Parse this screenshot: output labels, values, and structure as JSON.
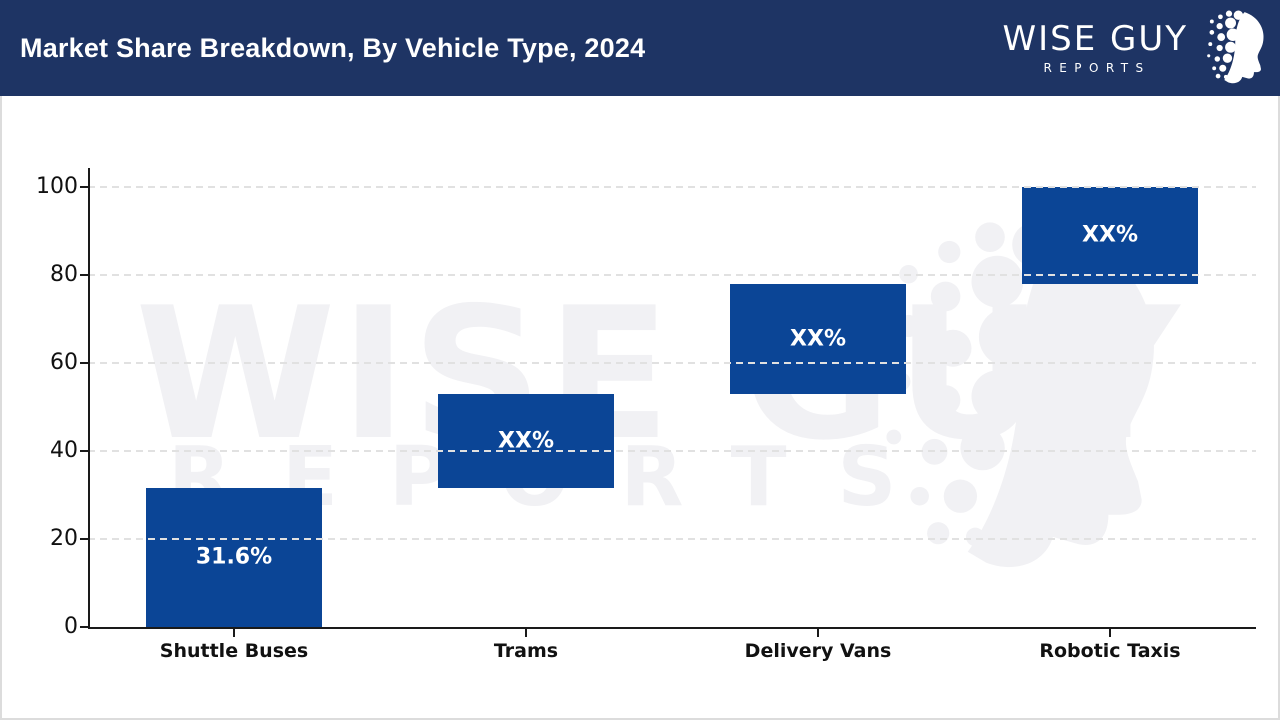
{
  "header": {
    "title": "Market Share Breakdown, By Vehicle Type, 2024",
    "logo": {
      "line1": "WISE GUY",
      "line2": "REPORTS"
    }
  },
  "watermark": {
    "line1": "WISE GUY",
    "line2": "REPORTS"
  },
  "chart_data": {
    "type": "bar",
    "subtype": "waterfall",
    "title": "Market Share Breakdown, By Vehicle Type, 2024",
    "categories": [
      "Shuttle Buses",
      "Trams",
      "Delivery Vans",
      "Robotic Taxis"
    ],
    "segments": [
      {
        "category": "Shuttle Buses",
        "start": 0,
        "end": 31.6,
        "label": "31.6%"
      },
      {
        "category": "Trams",
        "start": 31.6,
        "end": 53,
        "label": "XX%"
      },
      {
        "category": "Delivery Vans",
        "start": 53,
        "end": 78,
        "label": "XX%"
      },
      {
        "category": "Robotic Taxis",
        "start": 78,
        "end": 100,
        "label": "XX%"
      }
    ],
    "yticks": [
      0,
      20,
      40,
      60,
      80,
      100
    ],
    "ylim": [
      0,
      104
    ],
    "xlabel": "",
    "ylabel": "",
    "grid": "dashed-horizontal-over-bars",
    "legend": "none",
    "bar_color": "#0b4596",
    "bar_label_color": "#ffffff"
  },
  "colors": {
    "header_bg": "#1e3464",
    "bar": "#0b4596",
    "gridline": "#e1e1e1",
    "axis": "#1a1a1a",
    "watermark": "#f1f1f4",
    "frame_border": "#dcdcdc",
    "title_text": "#ffffff"
  }
}
